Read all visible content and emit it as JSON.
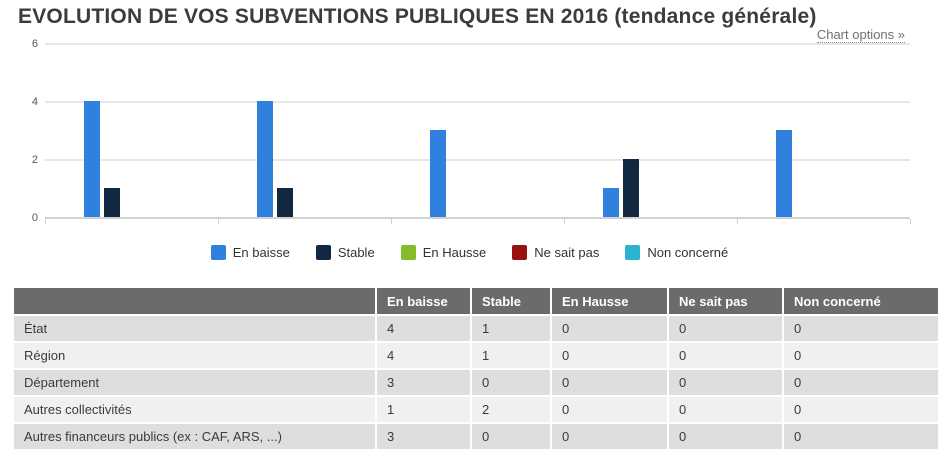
{
  "header": {
    "title": "EVOLUTION DE VOS SUBVENTIONS PUBLIQUES EN 2016 (tendance générale)",
    "chart_options_label": "Chart options »"
  },
  "colors": {
    "en_baisse": "#3080dd",
    "stable": "#112840",
    "en_hausse": "#86bb2a",
    "ne_sait_pas": "#991111",
    "non_concerne": "#2ab4d1",
    "table_header_bg": "#6b6b6b",
    "row_dark": "#dedede",
    "row_light": "#f0f0f0",
    "gridline": "#e7e7e7",
    "axisline": "#d2d2d2"
  },
  "chart_data": {
    "type": "bar",
    "title": "EVOLUTION DE VOS SUBVENTIONS PUBLIQUES EN 2016 (tendance générale)",
    "xlabel": "",
    "ylabel": "",
    "categories": [
      "État",
      "Région",
      "Département",
      "Autres collectivités",
      "Autres financeurs publics (ex : CAF, ARS, ...)"
    ],
    "series": [
      {
        "name": "En baisse",
        "color": "#3080dd",
        "values": [
          4,
          4,
          3,
          1,
          3
        ]
      },
      {
        "name": "Stable",
        "color": "#112840",
        "values": [
          1,
          1,
          0,
          2,
          0
        ]
      },
      {
        "name": "En Hausse",
        "color": "#86bb2a",
        "values": [
          0,
          0,
          0,
          0,
          0
        ]
      },
      {
        "name": "Ne sait pas",
        "color": "#991111",
        "values": [
          0,
          0,
          0,
          0,
          0
        ]
      },
      {
        "name": "Non concerné",
        "color": "#2ab4d1",
        "values": [
          0,
          0,
          0,
          0,
          0
        ]
      }
    ],
    "ylim": [
      0,
      6
    ],
    "yticks": [
      0,
      2,
      4,
      6
    ],
    "grid": true,
    "x_tick_labels_visible": false,
    "legend_position": "bottom"
  },
  "table": {
    "columns": [
      "",
      "En baisse",
      "Stable",
      "En Hausse",
      "Ne sait pas",
      "Non concerné"
    ],
    "rows": [
      {
        "label": "État",
        "values": [
          "4",
          "1",
          "0",
          "0",
          "0"
        ]
      },
      {
        "label": "Région",
        "values": [
          "4",
          "1",
          "0",
          "0",
          "0"
        ]
      },
      {
        "label": "Département",
        "values": [
          "3",
          "0",
          "0",
          "0",
          "0"
        ]
      },
      {
        "label": "Autres collectivités",
        "values": [
          "1",
          "2",
          "0",
          "0",
          "0"
        ]
      },
      {
        "label": "Autres financeurs publics (ex : CAF, ARS, ...)",
        "values": [
          "3",
          "0",
          "0",
          "0",
          "0"
        ]
      }
    ]
  }
}
